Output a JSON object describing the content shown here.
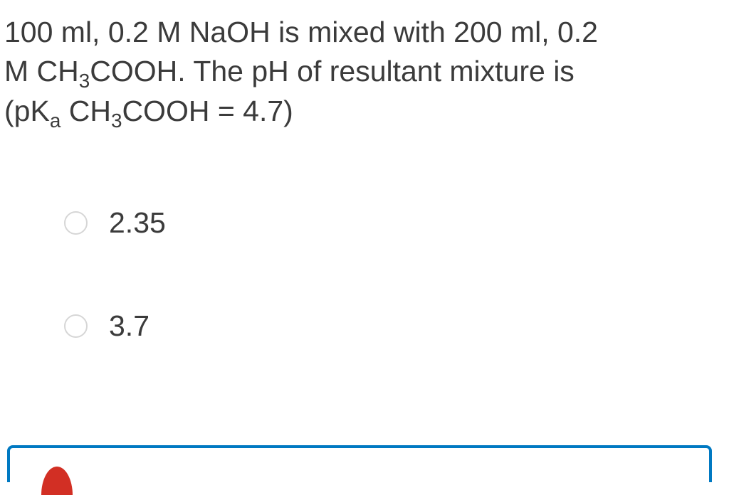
{
  "question": {
    "line1_a": "100 ml, 0.2 M NaOH is mixed with 200 ml, 0.2",
    "line2_a": "M CH",
    "line2_sub1": "3",
    "line2_b": "COOH. The pH of resultant mixture is",
    "line3_a": "(pK",
    "line3_sub1": "a",
    "line3_b": " CH",
    "line3_sub2": "3",
    "line3_c": "COOH = 4.7)"
  },
  "options": [
    {
      "label": "2.35"
    },
    {
      "label": "3.7"
    }
  ],
  "colors": {
    "text": "#3b3b3b",
    "radio_border": "#d6d6d6",
    "box_border": "#0079c2",
    "dot": "#d22f24",
    "background": "#ffffff"
  }
}
